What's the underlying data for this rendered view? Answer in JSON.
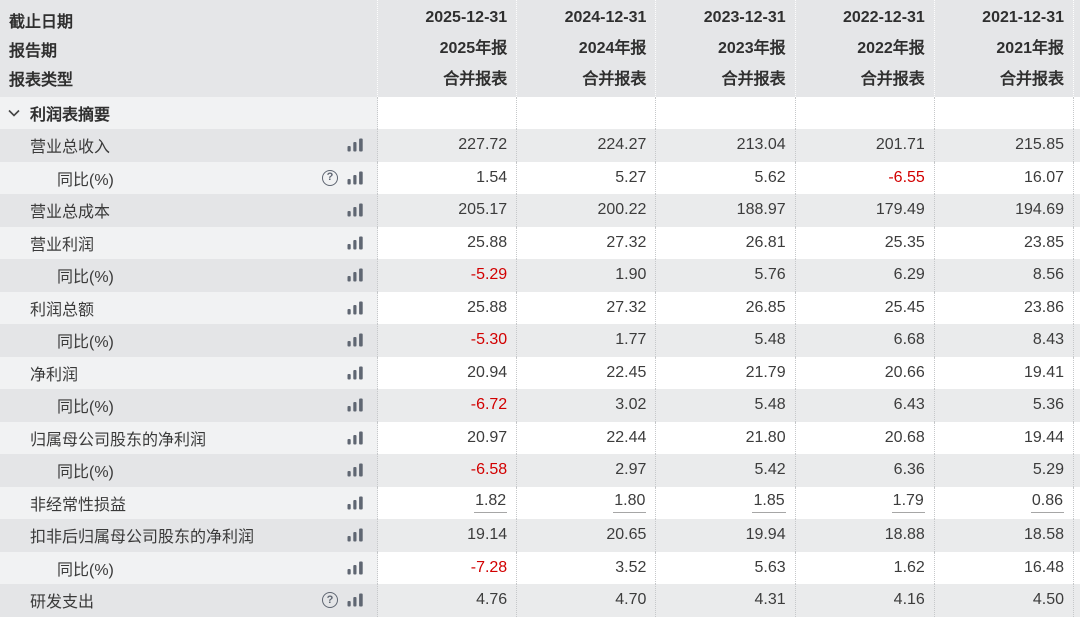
{
  "header": {
    "row_labels": [
      "截止日期",
      "报告期",
      "报表类型"
    ],
    "columns": [
      {
        "date": "2025-12-31",
        "period": "2025年报",
        "report_type": "合并报表"
      },
      {
        "date": "2024-12-31",
        "period": "2024年报",
        "report_type": "合并报表"
      },
      {
        "date": "2023-12-31",
        "period": "2023年报",
        "report_type": "合并报表"
      },
      {
        "date": "2022-12-31",
        "period": "2022年报",
        "report_type": "合并报表"
      },
      {
        "date": "2021-12-31",
        "period": "2021年报",
        "report_type": "合并报表"
      }
    ]
  },
  "section": {
    "title": "利润表摘要",
    "collapse_icon": "chevron-down-icon"
  },
  "rows": [
    {
      "label": "营业总收入",
      "indent": 1,
      "help_icon": false,
      "chart_icon": true,
      "underline": false,
      "values": [
        "227.72",
        "224.27",
        "213.04",
        "201.71",
        "215.85"
      ]
    },
    {
      "label": "同比(%)",
      "indent": 2,
      "help_icon": true,
      "chart_icon": true,
      "underline": false,
      "values": [
        "1.54",
        "5.27",
        "5.62",
        "-6.55",
        "16.07"
      ]
    },
    {
      "label": "营业总成本",
      "indent": 1,
      "help_icon": false,
      "chart_icon": true,
      "underline": false,
      "values": [
        "205.17",
        "200.22",
        "188.97",
        "179.49",
        "194.69"
      ]
    },
    {
      "label": "营业利润",
      "indent": 1,
      "help_icon": false,
      "chart_icon": true,
      "underline": false,
      "values": [
        "25.88",
        "27.32",
        "26.81",
        "25.35",
        "23.85"
      ]
    },
    {
      "label": "同比(%)",
      "indent": 2,
      "help_icon": false,
      "chart_icon": true,
      "underline": false,
      "values": [
        "-5.29",
        "1.90",
        "5.76",
        "6.29",
        "8.56"
      ]
    },
    {
      "label": "利润总额",
      "indent": 1,
      "help_icon": false,
      "chart_icon": true,
      "underline": false,
      "values": [
        "25.88",
        "27.32",
        "26.85",
        "25.45",
        "23.86"
      ]
    },
    {
      "label": "同比(%)",
      "indent": 2,
      "help_icon": false,
      "chart_icon": true,
      "underline": false,
      "values": [
        "-5.30",
        "1.77",
        "5.48",
        "6.68",
        "8.43"
      ]
    },
    {
      "label": "净利润",
      "indent": 1,
      "help_icon": false,
      "chart_icon": true,
      "underline": false,
      "values": [
        "20.94",
        "22.45",
        "21.79",
        "20.66",
        "19.41"
      ]
    },
    {
      "label": "同比(%)",
      "indent": 2,
      "help_icon": false,
      "chart_icon": true,
      "underline": false,
      "values": [
        "-6.72",
        "3.02",
        "5.48",
        "6.43",
        "5.36"
      ]
    },
    {
      "label": "归属母公司股东的净利润",
      "indent": 1,
      "help_icon": false,
      "chart_icon": true,
      "underline": false,
      "values": [
        "20.97",
        "22.44",
        "21.80",
        "20.68",
        "19.44"
      ]
    },
    {
      "label": "同比(%)",
      "indent": 2,
      "help_icon": false,
      "chart_icon": true,
      "underline": false,
      "values": [
        "-6.58",
        "2.97",
        "5.42",
        "6.36",
        "5.29"
      ]
    },
    {
      "label": "非经常性损益",
      "indent": 1,
      "help_icon": false,
      "chart_icon": true,
      "underline": true,
      "values": [
        "1.82",
        "1.80",
        "1.85",
        "1.79",
        "0.86"
      ]
    },
    {
      "label": "扣非后归属母公司股东的净利润",
      "indent": 1,
      "help_icon": false,
      "chart_icon": true,
      "underline": false,
      "values": [
        "19.14",
        "20.65",
        "19.94",
        "18.88",
        "18.58"
      ]
    },
    {
      "label": "同比(%)",
      "indent": 2,
      "help_icon": false,
      "chart_icon": true,
      "underline": false,
      "values": [
        "-7.28",
        "3.52",
        "5.63",
        "1.62",
        "16.48"
      ]
    },
    {
      "label": "研发支出",
      "indent": 1,
      "help_icon": true,
      "chart_icon": true,
      "underline": false,
      "values": [
        "4.76",
        "4.70",
        "4.31",
        "4.16",
        "4.50"
      ]
    }
  ],
  "icons": {
    "chart": "bar-chart-icon",
    "help": "question-mark-icon",
    "help_glyph": "?"
  },
  "colors": {
    "negative_value": "#d20000",
    "icon_gray": "#5f6672",
    "stripe_dark_data": "#eaebec",
    "stripe_dark_label": "#e4e5e7",
    "stripe_light_label": "#f1f2f3",
    "header_bg": "#e5e6e8"
  }
}
